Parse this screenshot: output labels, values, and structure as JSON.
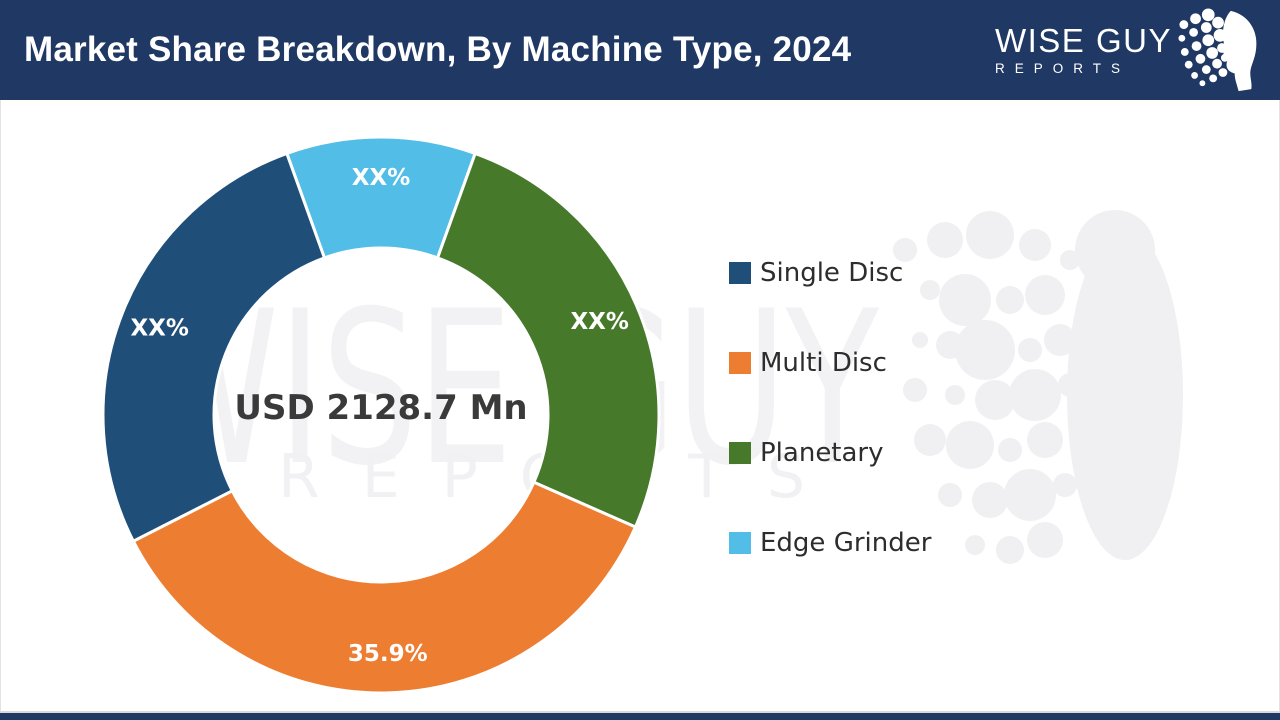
{
  "header": {
    "title": "Market Share Breakdown, By Machine Type, 2024",
    "logo": {
      "line1": "WISE GUY",
      "line2": "REPORTS"
    }
  },
  "watermark": {
    "line1": "WISE GUY",
    "line2": "REPORTS"
  },
  "colors": {
    "header_bg": "#1F3864",
    "footer_bar": "#1F3864",
    "single_disc": "#1F4E79",
    "multi_disc": "#ED7D31",
    "planetary": "#47792B",
    "edge_grinder": "#52BDE6",
    "center_text": "#3A3A3A",
    "legend_text": "#2D2D2D",
    "percent_label_text": "#FFFFFF",
    "watermark": "#F2F2F4"
  },
  "chart_data": {
    "type": "pie",
    "subtype": "donut",
    "title": "Market Share Breakdown, By Machine Type, 2024",
    "center_label": "USD 2128.7 Mn",
    "start_angle_deg_clockwise_from_top": -19.8,
    "draw_order_clockwise": [
      "Edge Grinder",
      "Planetary",
      "Multi Disc",
      "Single Disc"
    ],
    "series": [
      {
        "name": "Single Disc",
        "value_pct": 27.0,
        "displayed_label": "XX%",
        "color": "#1F4E79"
      },
      {
        "name": "Multi Disc",
        "value_pct": 35.9,
        "displayed_label": "35.9%",
        "color": "#ED7D31"
      },
      {
        "name": "Planetary",
        "value_pct": 26.1,
        "displayed_label": "XX%",
        "color": "#47792B"
      },
      {
        "name": "Edge Grinder",
        "value_pct": 11.0,
        "displayed_label": "XX%",
        "color": "#52BDE6"
      }
    ],
    "legend": {
      "position": "right",
      "items": [
        "Single Disc",
        "Multi Disc",
        "Planetary",
        "Edge Grinder"
      ]
    },
    "note": "Only the Multi Disc slice shows a numeric value (35.9%); the other three slice labels are masked as XX% in the image, their value_pct are estimated from arc angles."
  }
}
